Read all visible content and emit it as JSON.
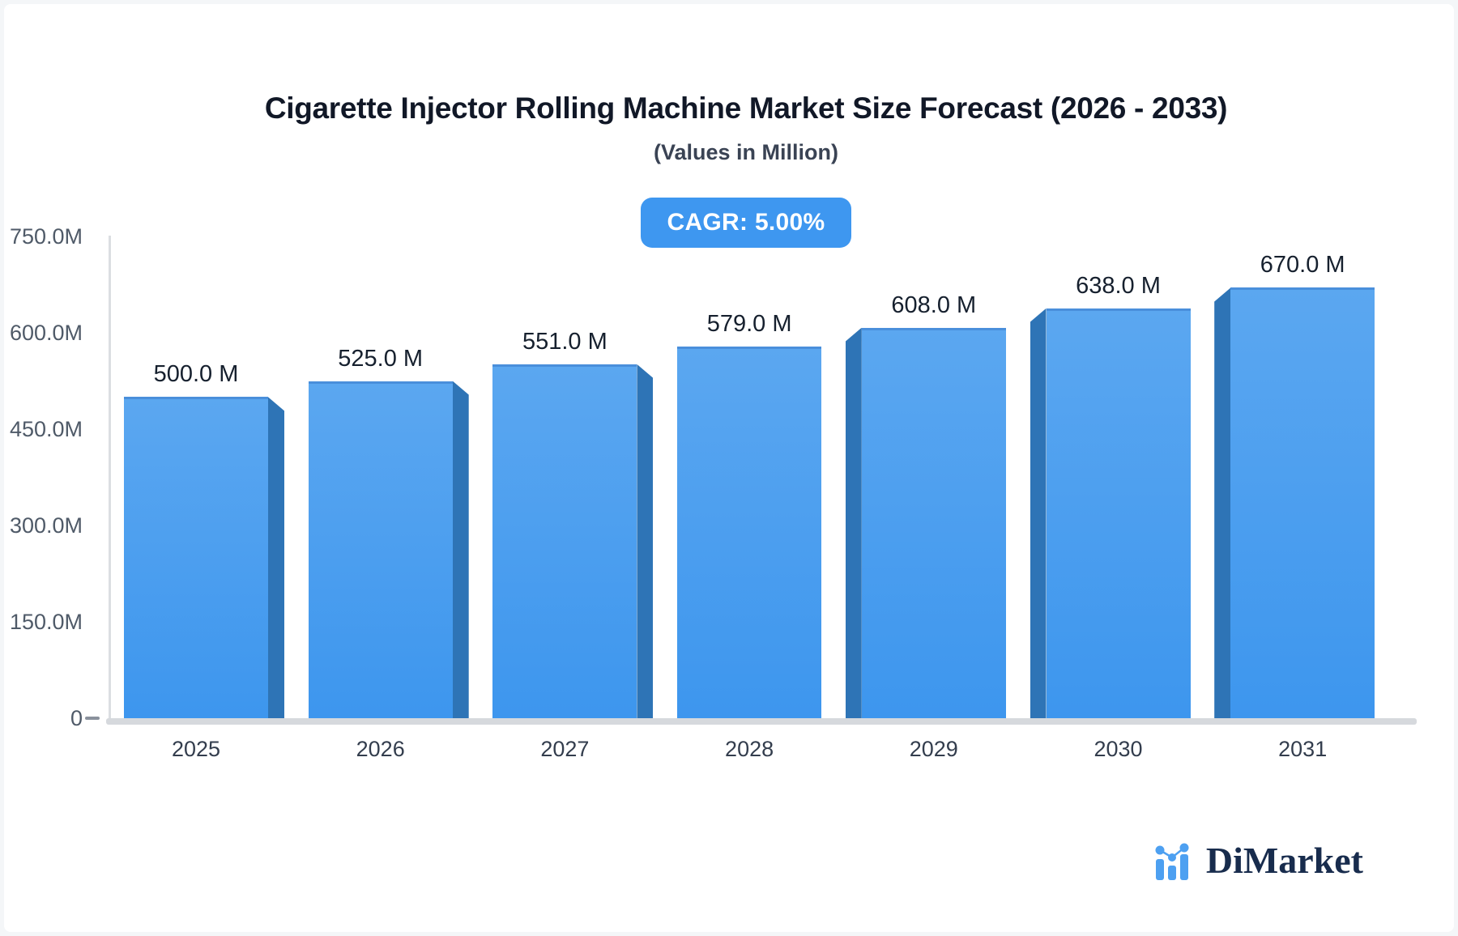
{
  "header": {
    "title": "Cigarette Injector Rolling Machine Market Size Forecast (2026 - 2033)",
    "subtitle": "(Values in Million)",
    "cagr_label": "CAGR: 5.00%"
  },
  "chart_data": {
    "type": "bar",
    "title": "Cigarette Injector Rolling Machine Market Size Forecast (2026 - 2033)",
    "subtitle": "(Values in Million)",
    "unit": "Million",
    "cagr_percent": 5.0,
    "categories": [
      "2025",
      "2026",
      "2027",
      "2028",
      "2029",
      "2030",
      "2031"
    ],
    "values": [
      500,
      525,
      551,
      579,
      608,
      638,
      670
    ],
    "value_labels": [
      "500.0 M",
      "525.0 M",
      "551.0 M",
      "579.0 M",
      "608.0 M",
      "638.0 M",
      "670.0 M"
    ],
    "y_ticks": [
      {
        "value": 750,
        "label": "750.0M"
      },
      {
        "value": 600,
        "label": "600.0M"
      },
      {
        "value": 450,
        "label": "450.0M"
      },
      {
        "value": 300,
        "label": "300.0M"
      },
      {
        "value": 150,
        "label": "150.0M"
      },
      {
        "value": 0,
        "label": "0"
      }
    ],
    "ylim": [
      0,
      750
    ],
    "grid": false,
    "legend": false,
    "bar_style": "3d-center-perspective"
  },
  "colors": {
    "bar_face_top": "#5BA7F0",
    "bar_face_bottom": "#3D96EE",
    "bar_top_edge": "#4A8FDB",
    "bar_side": "#2E74B6",
    "badge_bg": "#3E97F0",
    "badge_text": "#FFFFFF",
    "axis_line": "#DBDEE2",
    "baseline": "#D6D9DD",
    "tick_dash": "#8A919C",
    "title_text": "#111827",
    "subtitle_text": "#3A4354",
    "axis_label": "#4F5A68",
    "category_label": "#333D4D",
    "value_label": "#16202E",
    "logo_text": "#182C4D",
    "logo_icon": "#4DA0F1",
    "page_bg": "#F4F6F8",
    "card_bg": "#FFFFFF"
  },
  "logo": {
    "brand": "DiMarket",
    "icon": "bar-chart-sparkline-logo-icon"
  }
}
